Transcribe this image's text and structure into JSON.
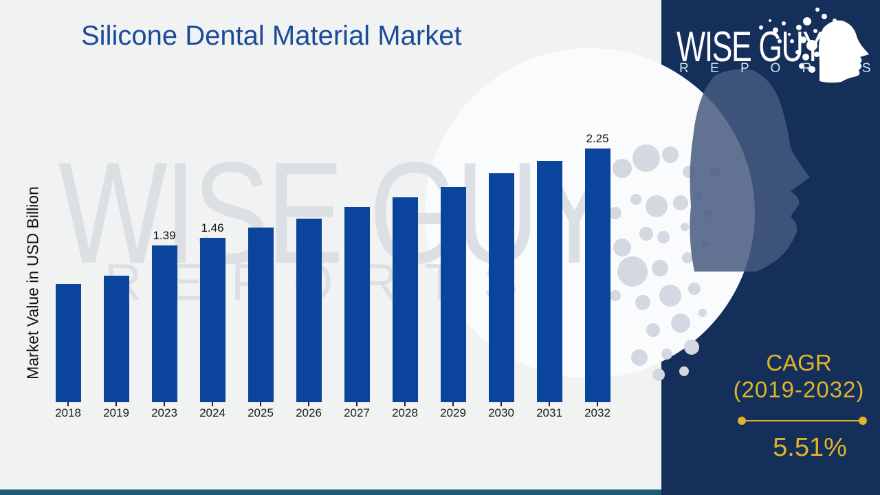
{
  "title": "Silicone Dental Material Market",
  "y_axis_label": "Market Value in USD Billion",
  "watermark": {
    "line1": "WISE GUY",
    "line2": "REPORTS"
  },
  "brand": {
    "name": "WISE GUY",
    "sub": "R E P O R T S"
  },
  "cagr": {
    "label": "CAGR",
    "range": "(2019-2032)",
    "value": "5.51%"
  },
  "colors": {
    "background": "#f1f2f2",
    "bar": "#0b449d",
    "title": "#1a4a9a",
    "navy_panel": "#142f5a",
    "gold": "#e2b32a",
    "teal_strip": "#1b5b73",
    "watermark_gray": "#dcdfe4"
  },
  "chart_data": {
    "type": "bar",
    "title": "Silicone Dental Material Market",
    "xlabel": "",
    "ylabel": "Market Value in USD Billion",
    "unit": "USD Billion",
    "categories": [
      "2018",
      "2019",
      "2023",
      "2024",
      "2025",
      "2026",
      "2027",
      "2028",
      "2029",
      "2030",
      "2031",
      "2032"
    ],
    "values": [
      1.05,
      1.12,
      1.39,
      1.46,
      1.55,
      1.63,
      1.73,
      1.82,
      1.91,
      2.03,
      2.14,
      2.25
    ],
    "visible_value_labels": {
      "2023": "1.39",
      "2024": "1.46",
      "2032": "2.25"
    },
    "bar_color": "#0b449d",
    "ylim": [
      0,
      2.6
    ],
    "grid": false,
    "legend": "none"
  }
}
